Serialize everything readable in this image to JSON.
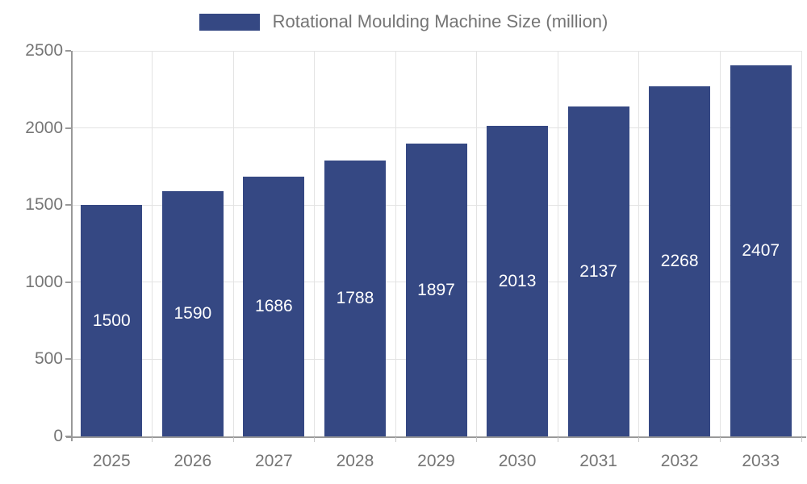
{
  "legend": {
    "label": "Rotational Moulding Machine Size (million)"
  },
  "colors": {
    "bar": "#354883",
    "gridline": "#e3e3e3",
    "axis_line": "#999999",
    "tick": "#c8c8c8",
    "axis_text": "#757575",
    "value_label": "#ffffff",
    "background": "#ffffff"
  },
  "chart_data": {
    "type": "bar",
    "title": "Rotational Moulding Machine Size (million)",
    "categories": [
      "2025",
      "2026",
      "2027",
      "2028",
      "2029",
      "2030",
      "2031",
      "2032",
      "2033"
    ],
    "values": [
      1500,
      1590,
      1686,
      1788,
      1897,
      2013,
      2137,
      2268,
      2407
    ],
    "xlabel": "",
    "ylabel": "",
    "ylim": [
      0,
      2500
    ],
    "yticks": [
      0,
      500,
      1000,
      1500,
      2000,
      2500
    ],
    "grid": true,
    "legend_position": "top",
    "value_labels": "inside-center"
  }
}
